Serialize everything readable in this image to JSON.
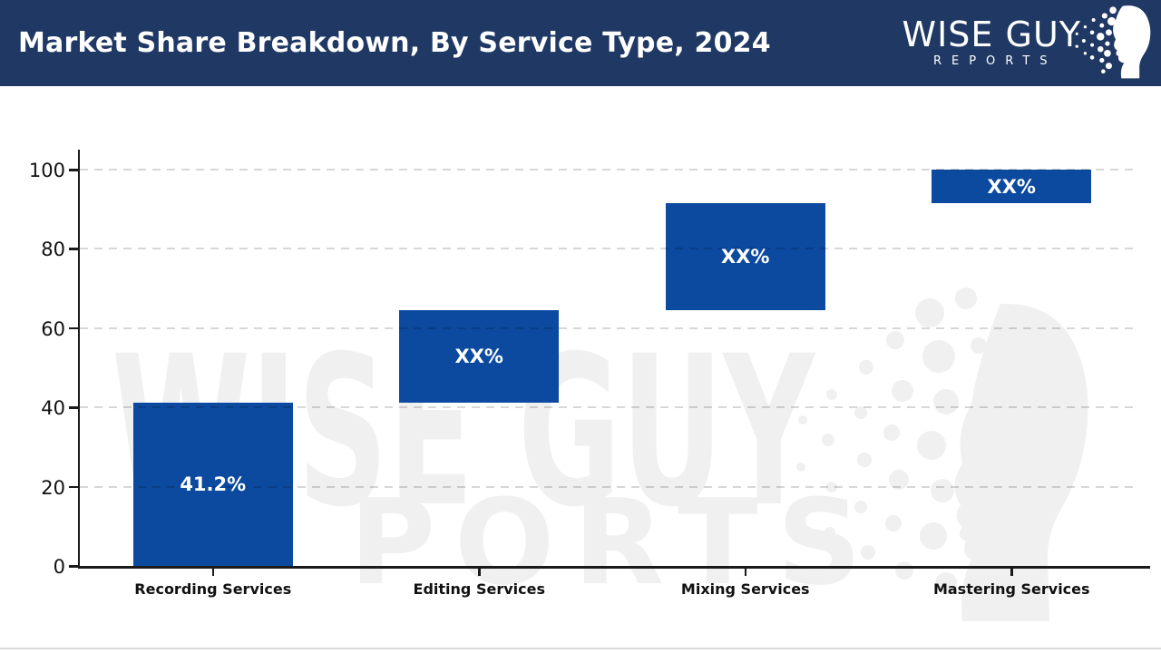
{
  "header": {
    "title": "Market Share Breakdown, By Service Type, 2024",
    "logo": {
      "line1": "WISE GUY",
      "line2": "REPORTS"
    }
  },
  "watermark": {
    "line1": "WISE GUY",
    "line2": "PORTS"
  },
  "colors": {
    "header_bg": "#1f3864",
    "bar": "#0b4a9f",
    "bar_label": "#ffffff",
    "axis": "#1a1a1a",
    "watermark": "#f0f0f0"
  },
  "chart_data": {
    "type": "bar",
    "subtype": "waterfall",
    "title": "Market Share Breakdown, By Service Type, 2024",
    "categories": [
      "Recording Services",
      "Editing Services",
      "Mixing Services",
      "Mastering Services"
    ],
    "series": [
      {
        "name": "Market Share %",
        "segments": [
          {
            "category": "Recording Services",
            "start": 0,
            "end": 41.2,
            "label": "41.2%"
          },
          {
            "category": "Editing Services",
            "start": 41.2,
            "end": 64.5,
            "label": "XX%"
          },
          {
            "category": "Mixing Services",
            "start": 64.5,
            "end": 91.5,
            "label": "XX%"
          },
          {
            "category": "Mastering Services",
            "start": 91.5,
            "end": 100,
            "label": "XX%"
          }
        ]
      }
    ],
    "xlabel": "",
    "ylabel": "",
    "ylim": [
      0,
      100
    ],
    "yticks": [
      0,
      20,
      40,
      60,
      80,
      100
    ],
    "grid": true,
    "grid_style": "dashed",
    "legend": "none"
  }
}
